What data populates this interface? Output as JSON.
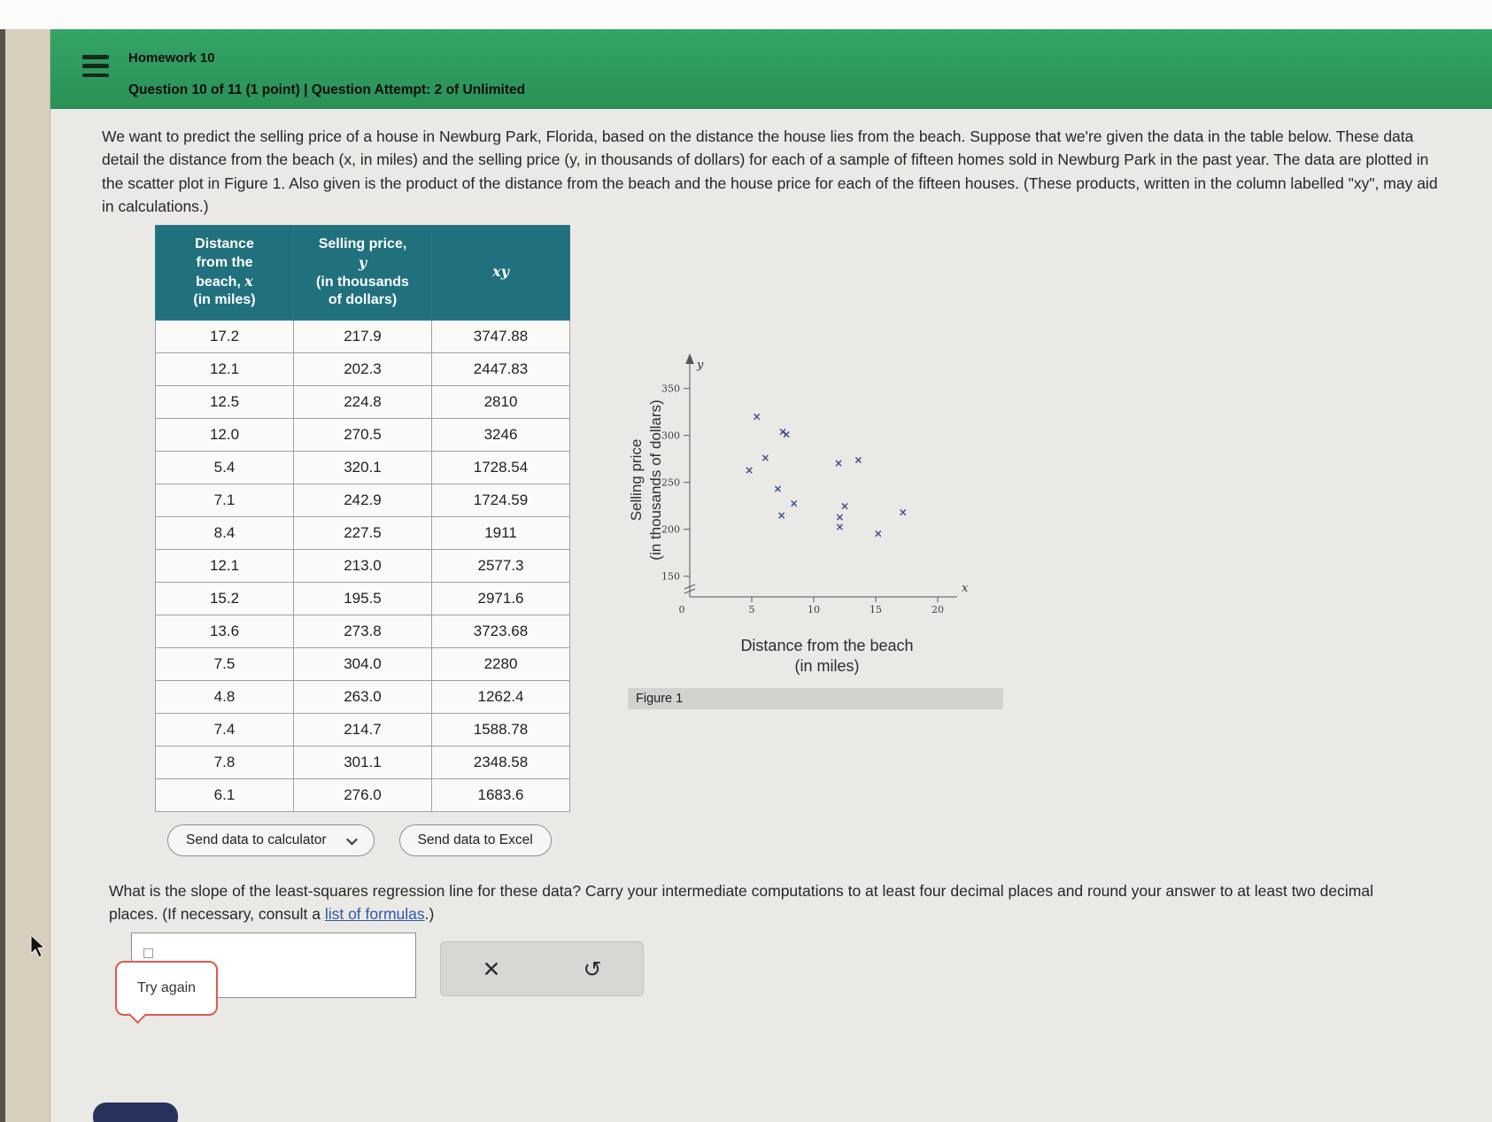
{
  "header": {
    "title": "Homework 10",
    "subtitle": "Question 10 of 11 (1 point)  |  Question Attempt: 2 of Unlimited"
  },
  "intro": "We want to predict the selling price of a house in Newburg Park, Florida, based on the distance the house lies from the beach. Suppose that we're given the data in the table below. These data detail the distance from the beach (x, in miles) and the selling price (y, in thousands of dollars) for each of a sample of fifteen homes sold in Newburg Park in the past year. The data are plotted in the scatter plot in Figure 1. Also given is the product of the distance from the beach and the house price for each of the fifteen houses. (These products, written in the column labelled \"xy\", may aid in calculations.)",
  "table": {
    "columns": [
      {
        "lines": [
          [
            {
              "t": "Distance"
            }
          ],
          [
            {
              "t": "from the"
            }
          ],
          [
            {
              "t": "beach, "
            },
            {
              "v": "x"
            }
          ],
          [
            {
              "t": "(in miles)"
            }
          ]
        ]
      },
      {
        "lines": [
          [
            {
              "t": "Selling price,"
            }
          ],
          [
            {
              "v": "y"
            }
          ],
          [
            {
              "t": "(in thousands"
            }
          ],
          [
            {
              "t": "of dollars)"
            }
          ]
        ]
      },
      {
        "lines": [
          [
            {
              "v": "xy"
            }
          ]
        ]
      }
    ],
    "rows": [
      [
        "17.2",
        "217.9",
        "3747.88"
      ],
      [
        "12.1",
        "202.3",
        "2447.83"
      ],
      [
        "12.5",
        "224.8",
        "2810"
      ],
      [
        "12.0",
        "270.5",
        "3246"
      ],
      [
        "5.4",
        "320.1",
        "1728.54"
      ],
      [
        "7.1",
        "242.9",
        "1724.59"
      ],
      [
        "8.4",
        "227.5",
        "1911"
      ],
      [
        "12.1",
        "213.0",
        "2577.3"
      ],
      [
        "15.2",
        "195.5",
        "2971.6"
      ],
      [
        "13.6",
        "273.8",
        "3723.68"
      ],
      [
        "7.5",
        "304.0",
        "2280"
      ],
      [
        "4.8",
        "263.0",
        "1262.4"
      ],
      [
        "7.4",
        "214.7",
        "1588.78"
      ],
      [
        "7.8",
        "301.1",
        "2348.58"
      ],
      [
        "6.1",
        "276.0",
        "1683.6"
      ]
    ]
  },
  "actions": {
    "send_calculator": "Send data to calculator",
    "send_excel": "Send data to Excel"
  },
  "figure": {
    "caption": "Figure 1",
    "xlabel": "Distance from the beach",
    "xlabel2": "(in miles)",
    "ylabel": "Selling price",
    "ylabel2": "(in thousands of dollars)",
    "x_axis_var": "x",
    "y_axis_var": "y"
  },
  "chart_data": {
    "type": "scatter",
    "x": [
      17.2,
      12.1,
      12.5,
      12.0,
      5.4,
      7.1,
      8.4,
      12.1,
      15.2,
      13.6,
      7.5,
      4.8,
      7.4,
      7.8,
      6.1
    ],
    "y": [
      217.9,
      202.3,
      224.8,
      270.5,
      320.1,
      242.9,
      227.5,
      213.0,
      195.5,
      273.8,
      304.0,
      263.0,
      214.7,
      301.1,
      276.0
    ],
    "title": "Figure 1",
    "xlabel": "Distance from the beach (in miles)",
    "ylabel": "Selling price (in thousands of dollars)",
    "xticks": [
      0,
      5,
      10,
      15,
      20
    ],
    "yticks": [
      150,
      200,
      250,
      300,
      350
    ],
    "xlim": [
      0,
      22
    ],
    "ylim": [
      130,
      370
    ],
    "marker": "x",
    "marker_color": "#3c4b8e",
    "grid": false,
    "axis_break": true
  },
  "question": {
    "part1": "What is the slope of the least-squares regression line for these data? Carry your intermediate computations to at least four decimal places and round your answer to at least two decimal places. (If necessary, consult a ",
    "link": "list of formulas",
    "part2": ".)"
  },
  "answer": {
    "value": "",
    "tooltip": "Try again"
  },
  "icons": {
    "close_glyph": "✕",
    "undo_glyph": "↺"
  }
}
